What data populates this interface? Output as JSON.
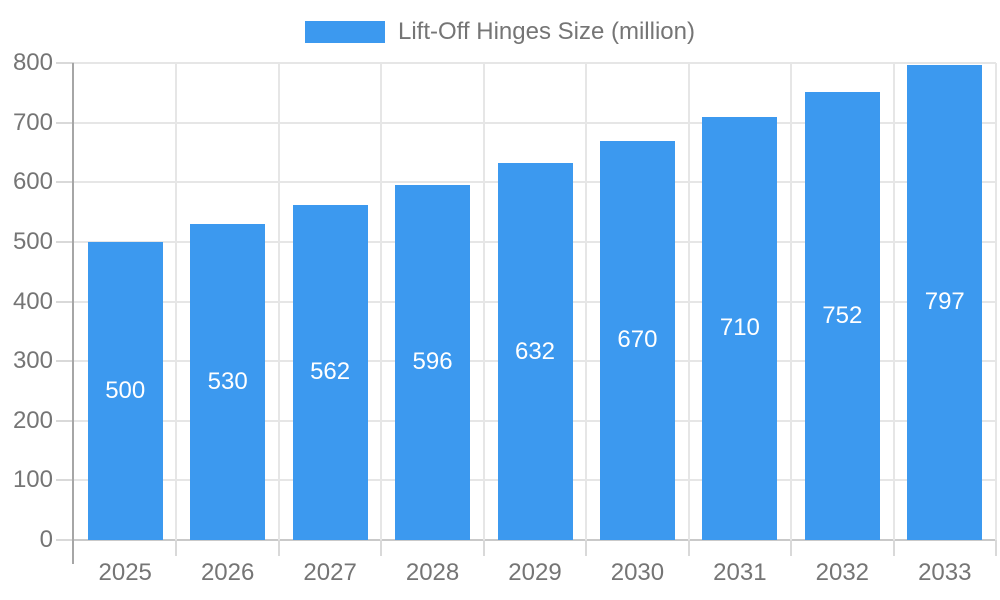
{
  "chart_data": {
    "type": "bar",
    "categories": [
      "2025",
      "2026",
      "2027",
      "2028",
      "2029",
      "2030",
      "2031",
      "2032",
      "2033"
    ],
    "values": [
      500,
      530,
      562,
      596,
      632,
      670,
      710,
      752,
      797
    ],
    "title": "Lift-Off Hinges Size (million)",
    "xlabel": "",
    "ylabel": "",
    "ylim": [
      0,
      800
    ],
    "yticks": [
      0,
      100,
      200,
      300,
      400,
      500,
      600,
      700,
      800
    ],
    "grid": true,
    "legend_position": "top",
    "legend": {
      "label": "Lift-Off Hinges Size (million)"
    },
    "colors": {
      "bar": "#3C99EF",
      "bar_label": "#FFFFFF",
      "axis_text": "#757575",
      "grid_line": "#E6E6E6",
      "axis_line": "#A6A6A6",
      "tick_line": "#D9D9D9",
      "baseline": "#C9C9C9",
      "background": "#FFFFFF"
    }
  }
}
